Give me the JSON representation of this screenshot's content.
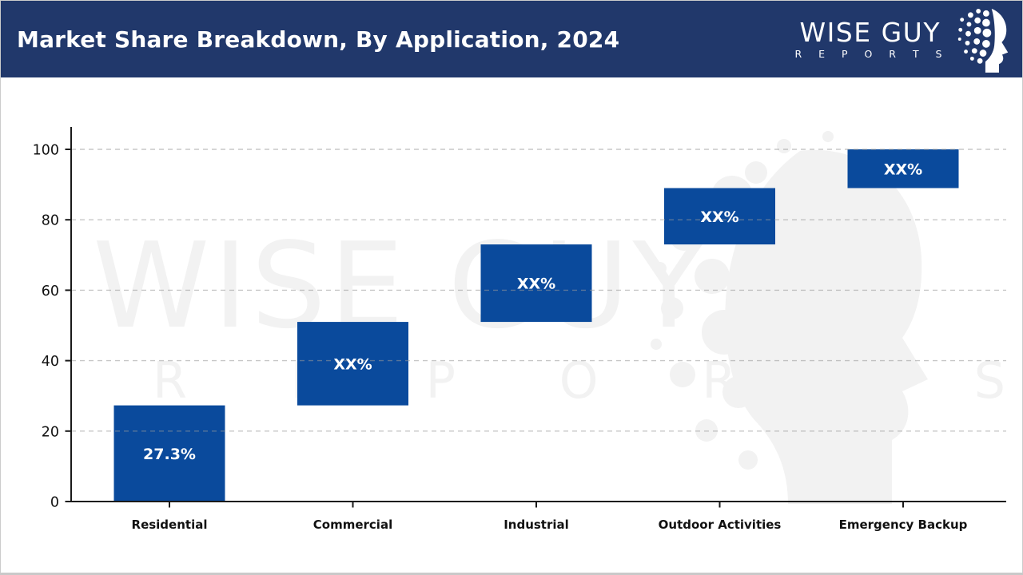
{
  "header": {
    "title": "Market Share Breakdown, By Application, 2024",
    "bg_color": "#21386B",
    "logo": {
      "name": "WISE GUY",
      "tagline": "R E P O R T S"
    }
  },
  "watermark": {
    "line1": "WISE GUY",
    "line2": "R E P O R T S"
  },
  "chart_data": {
    "type": "bar",
    "subtype": "floating-segment-waterfall",
    "title": "Market Share Breakdown, By Application, 2024",
    "categories": [
      "Residential",
      "Commercial",
      "Industrial",
      "Outdoor Activities",
      "Emergency Backup"
    ],
    "segments": [
      {
        "category": "Residential",
        "start": 0,
        "end": 27.3,
        "label": "27.3%"
      },
      {
        "category": "Commercial",
        "start": 27.3,
        "end": 51,
        "label": "XX%"
      },
      {
        "category": "Industrial",
        "start": 51,
        "end": 73,
        "label": "XX%"
      },
      {
        "category": "Outdoor Activities",
        "start": 73,
        "end": 89,
        "label": "XX%"
      },
      {
        "category": "Emergency Backup",
        "start": 89,
        "end": 100,
        "label": "XX%"
      }
    ],
    "y_ticks": [
      0,
      20,
      40,
      60,
      80,
      100
    ],
    "y_tick_labels": [
      "0",
      "20",
      "40",
      "60",
      "80",
      "100"
    ],
    "ylim": [
      0,
      106
    ],
    "xlabel": "",
    "ylabel": "",
    "grid": {
      "axis": "y",
      "style": "dashed",
      "color": "#999999",
      "opacity": 0.55,
      "on_top_of_bars": true
    },
    "legend": null,
    "bar_color": "#0A4A9C",
    "bar_label_color": "#ffffff",
    "axis_color": "#1a1a1a"
  }
}
